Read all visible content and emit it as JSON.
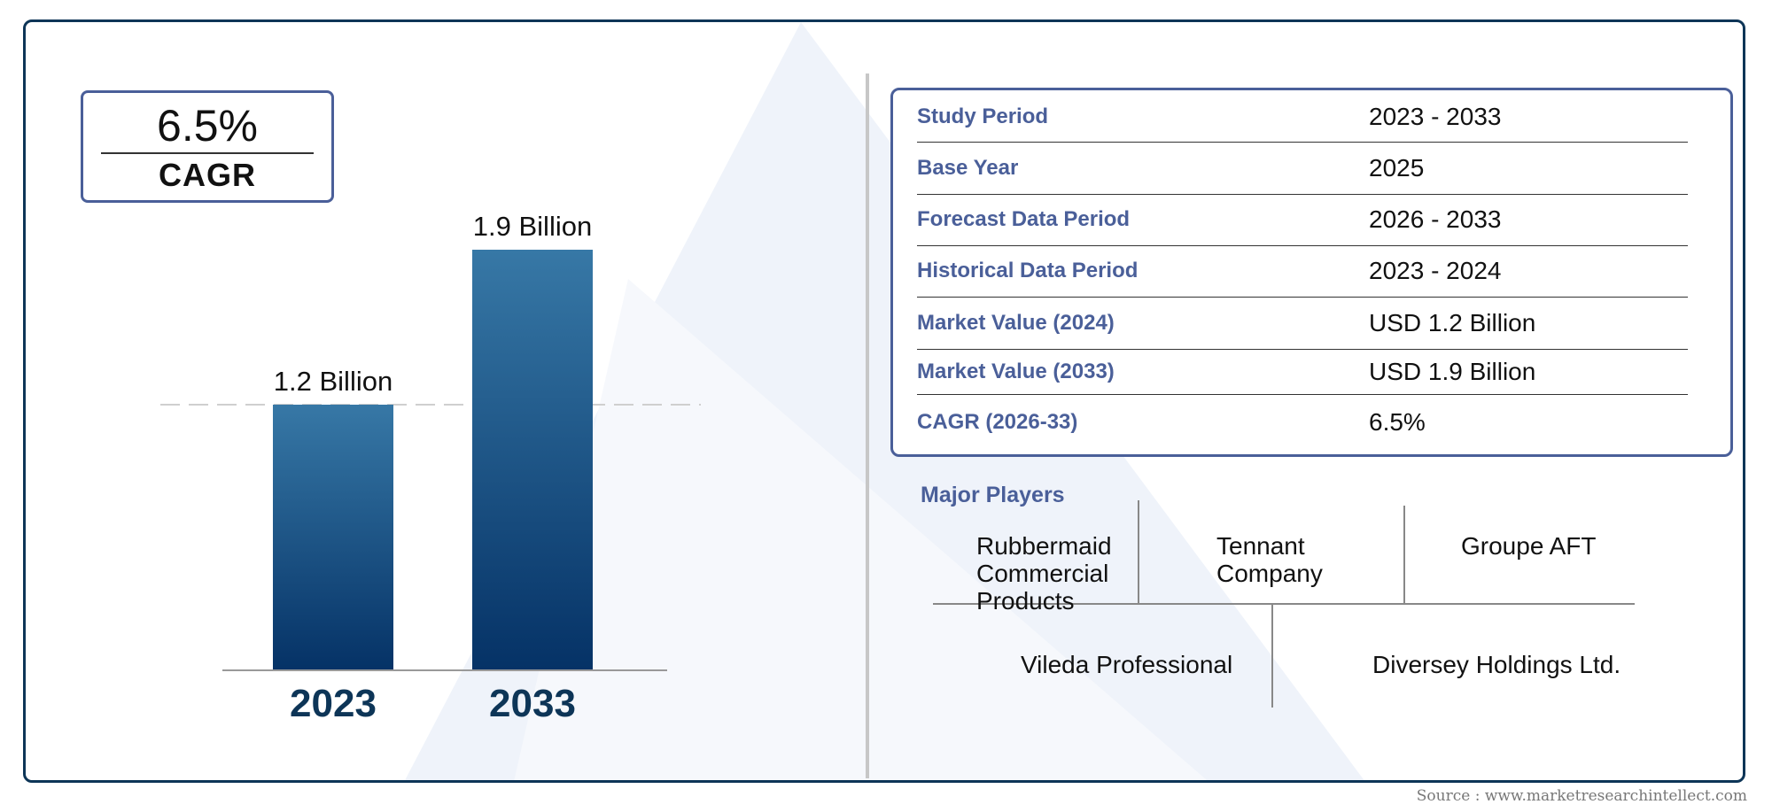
{
  "cagr_box": {
    "value": "6.5%",
    "label": "CAGR"
  },
  "chart_data": {
    "type": "bar",
    "categories": [
      "2023",
      "2033"
    ],
    "values": [
      1.2,
      1.9
    ],
    "value_labels": [
      "1.2 Billion",
      "1.9 Billion"
    ],
    "title": "",
    "xlabel": "",
    "ylabel": "",
    "ylim": [
      0,
      2.0
    ],
    "reference_line": 1.2,
    "bar_color_top": "#3778a6",
    "bar_color_bottom": "#053266",
    "grid": false
  },
  "info_table": [
    {
      "label": "Study Period",
      "value": "2023 - 2033"
    },
    {
      "label": "Base Year",
      "value": "2025"
    },
    {
      "label": "Forecast Data Period",
      "value": "2026 - 2033"
    },
    {
      "label": "Historical Data Period",
      "value": "2023 - 2024"
    },
    {
      "label": "Market Value (2024)",
      "value": "USD 1.2 Billion"
    },
    {
      "label": "Market Value (2033)",
      "value": "USD 1.9 Billion"
    },
    {
      "label": "CAGR (2026-33)",
      "value": "6.5%"
    }
  ],
  "players": {
    "title": "Major Players",
    "names": [
      "Rubbermaid Commercial Products",
      "Tennant Company",
      "Groupe AFT",
      "Vileda Professional",
      "Diversey Holdings Ltd."
    ]
  },
  "source": "Source : www.marketresearchintellect.com",
  "colors": {
    "frame": "#0d3557",
    "accent": "#4a5f99",
    "year_label": "#0d3557"
  }
}
